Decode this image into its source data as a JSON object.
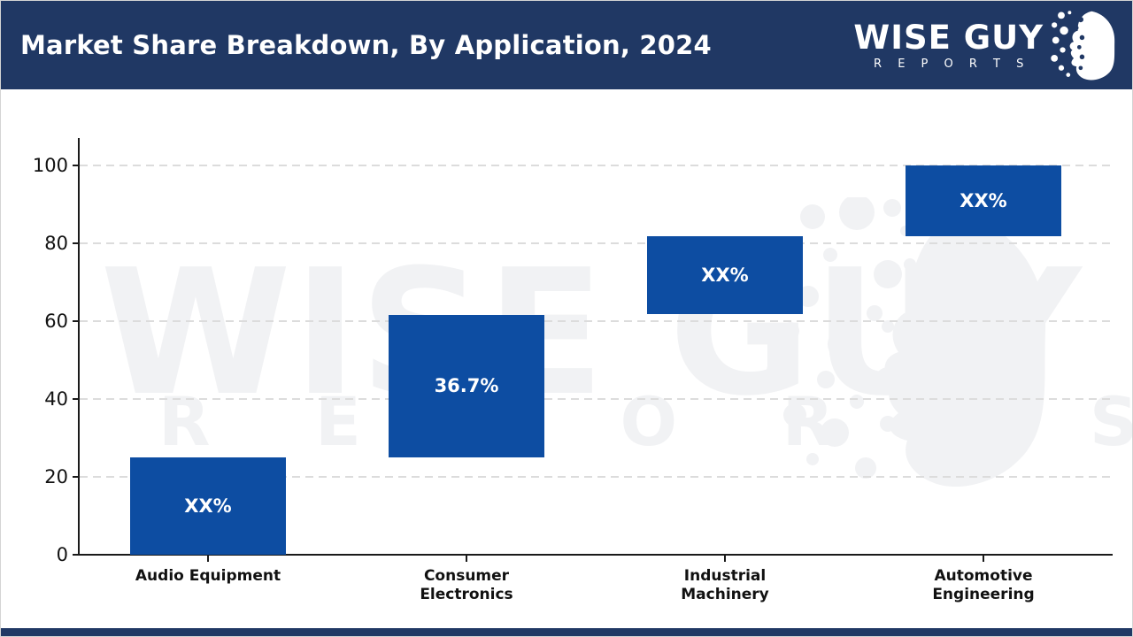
{
  "header": {
    "title": "Market Share Breakdown, By Application, 2024",
    "logo": {
      "primary": "WISE GUY",
      "secondary": "R E P O R T S",
      "icon": "dotted-head-profile"
    }
  },
  "watermark": {
    "line1": "WISE GUY",
    "line2": "R E P O R T S",
    "icon": "dotted-head-profile"
  },
  "chart_data": {
    "type": "bar",
    "variant": "floating-waterfall",
    "title": "Market Share Breakdown, By Application, 2024",
    "categories": [
      "Audio Equipment",
      "Consumer\nElectronics",
      "Industrial\nMachinery",
      "Automotive\nEngineering"
    ],
    "series": [
      {
        "name": "Market share (%)",
        "segments": [
          {
            "category": "Audio Equipment",
            "start": 0,
            "end": 25,
            "label": "XX%"
          },
          {
            "category": "Consumer Electronics",
            "start": 25,
            "end": 61.7,
            "label": "36.7%"
          },
          {
            "category": "Industrial Machinery",
            "start": 61.8,
            "end": 81.8,
            "label": "XX%"
          },
          {
            "category": "Automotive Engineering",
            "start": 81.8,
            "end": 100,
            "label": "XX%"
          }
        ]
      }
    ],
    "yticks": [
      0,
      20,
      40,
      60,
      80,
      100
    ],
    "ylim": [
      0,
      107
    ],
    "xlabel": "",
    "ylabel": "",
    "grid": "dashed-horizontal",
    "legend": "none"
  },
  "colors": {
    "header_bg": "#203864",
    "footer_bg": "#203864",
    "bar": "#0d4da2",
    "bar_label": "#ffffff",
    "axis": "#1a1a1a",
    "grid": "#dcdcdc",
    "watermark": "#f1f2f4",
    "tick_text": "#111111",
    "title_text": "#ffffff"
  }
}
